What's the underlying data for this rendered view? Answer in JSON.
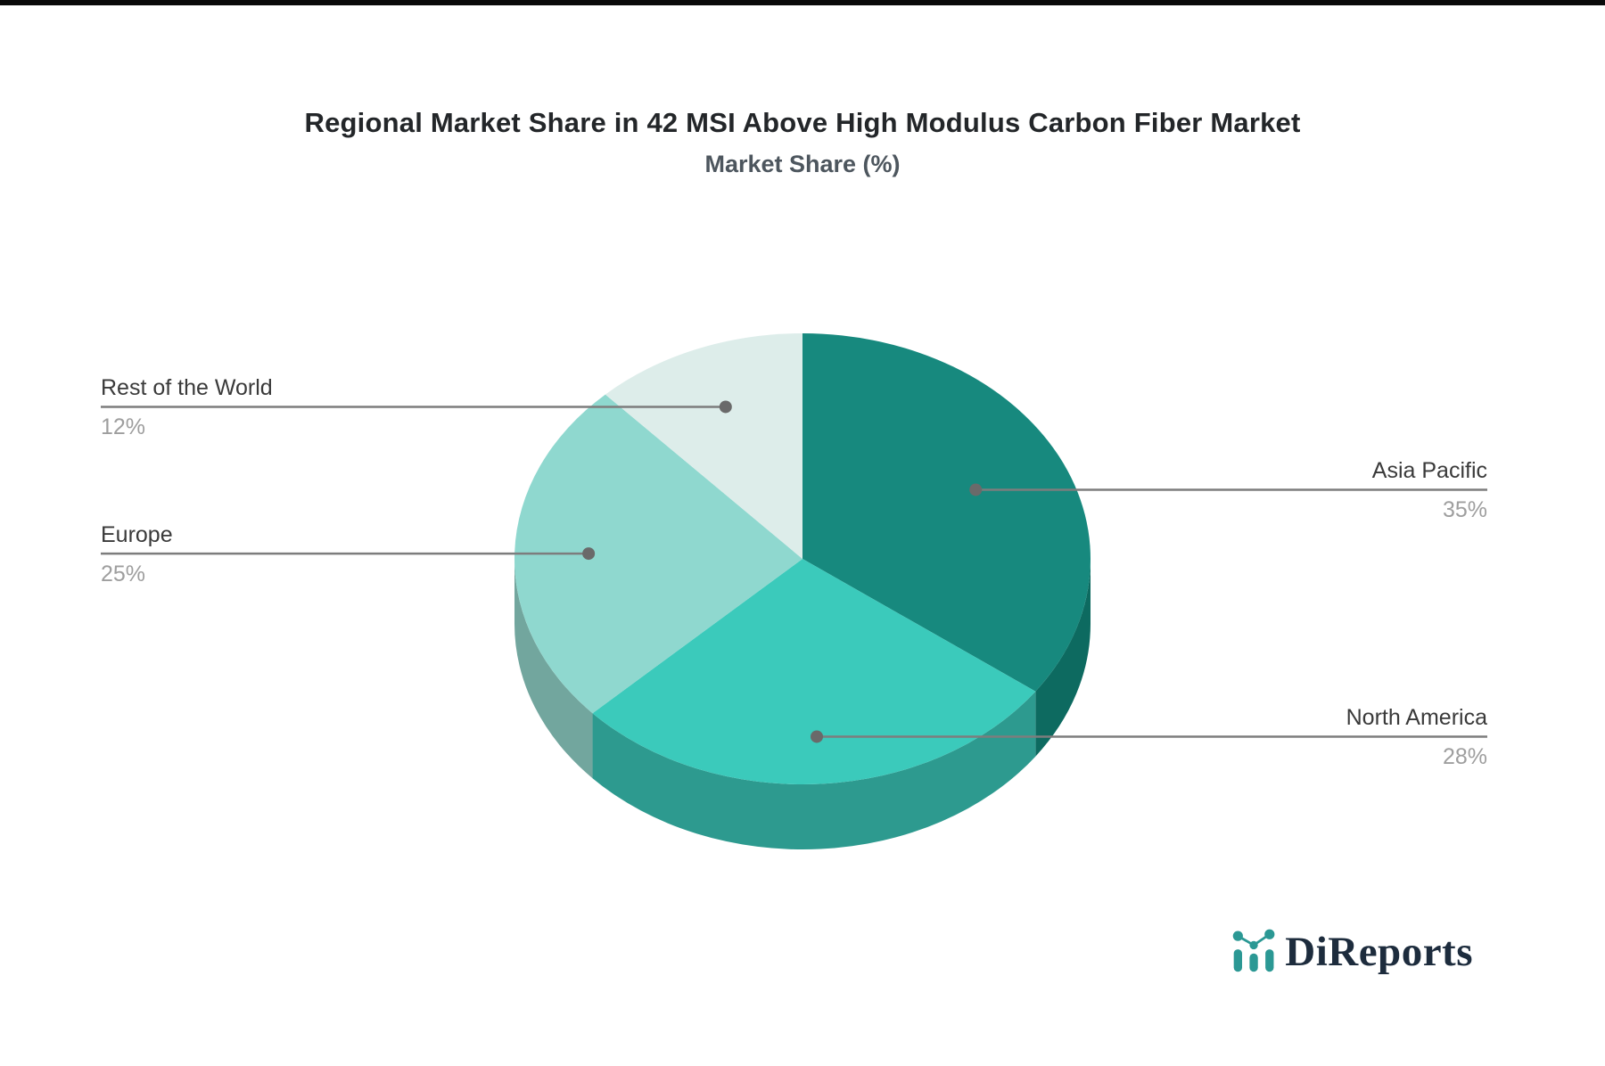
{
  "title": "Regional Market Share in 42 MSI Above High Modulus Carbon Fiber Market",
  "subtitle": "Market Share (%)",
  "chart_data": {
    "type": "pie",
    "style": "3d-pie",
    "unit": "%",
    "start_angle_deg": 0,
    "clockwise": true,
    "legend_position": "callout-labels",
    "slices": [
      {
        "label": "Asia Pacific",
        "value": 35,
        "display": "35%",
        "color": "#17897e",
        "side_color": "#0d6a60",
        "callout_side": "right"
      },
      {
        "label": "North America",
        "value": 28,
        "display": "28%",
        "color": "#3bcabb",
        "side_color": "#2d9a8f",
        "callout_side": "right"
      },
      {
        "label": "Europe",
        "value": 25,
        "display": "25%",
        "color": "#8fd8cf",
        "side_color": "#72a69e",
        "callout_side": "left"
      },
      {
        "label": "Rest of the World",
        "value": 12,
        "display": "12%",
        "color": "#ddedea",
        "side_color": "#b9cdc9",
        "callout_side": "left"
      }
    ],
    "callout_style": {
      "line_color": "#7d7d7d",
      "dot_color": "#6a6a6a",
      "label_color": "#3a3a3a",
      "value_color": "#9e9e9e"
    }
  },
  "logo": {
    "text": "DiReports",
    "text_color": "#1d2c3d",
    "icon": "bar-and-line-chart-icon",
    "icon_color": "#2b9894"
  }
}
